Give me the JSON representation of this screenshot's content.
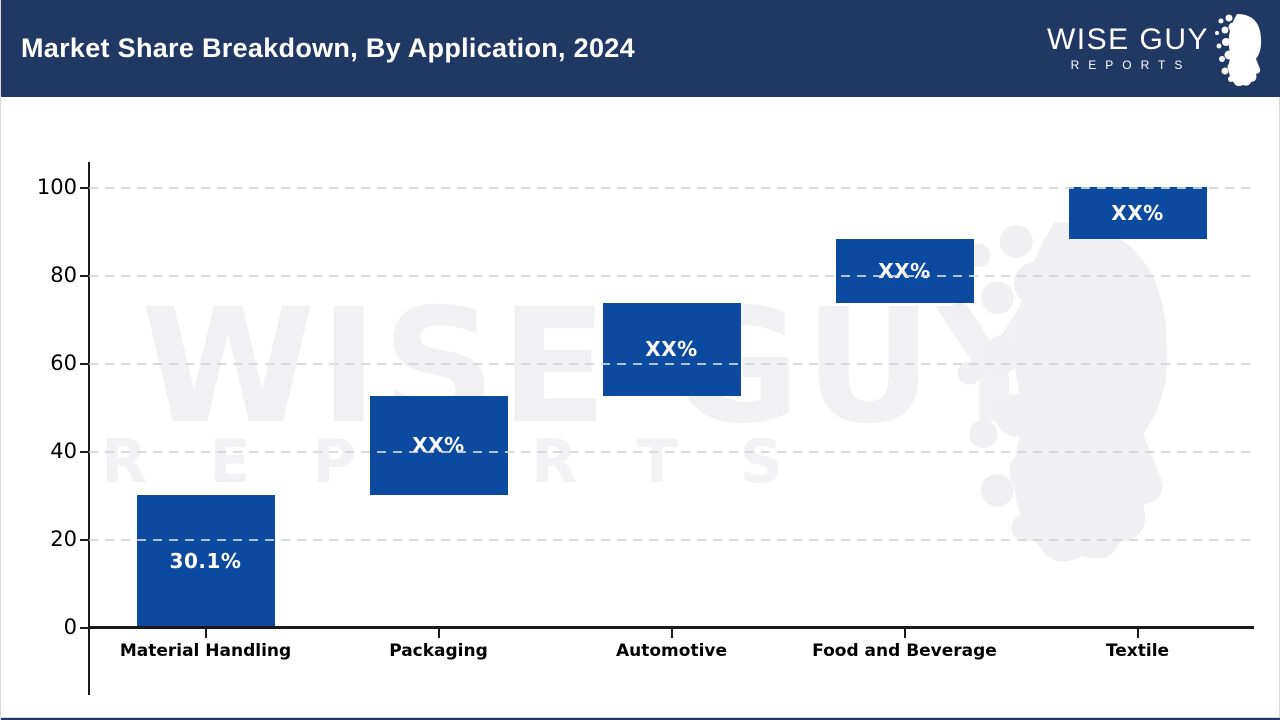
{
  "header": {
    "title": "Market Share Breakdown, By Application, 2024",
    "logo": {
      "line1": "WISE GUY",
      "line2": "REPORTS"
    },
    "bg_color": "#1f3864"
  },
  "watermark": {
    "line1": "WISE GUY",
    "line2": "REPORTS"
  },
  "chart_data": {
    "type": "bar",
    "subtype": "floating-waterfall",
    "title": "Market Share Breakdown, By Application, 2024",
    "categories": [
      "Material Handling",
      "Packaging",
      "Automotive",
      "Food and Beverage",
      "Textile"
    ],
    "bar_start": [
      0,
      30.1,
      52.6,
      73.7,
      88.2
    ],
    "bar_end": [
      30.1,
      52.6,
      73.7,
      88.2,
      100
    ],
    "bar_labels": [
      "30.1%",
      "XX%",
      "XX%",
      "XX%",
      "XX%"
    ],
    "yticks": [
      "0",
      "20",
      "40",
      "60",
      "80",
      "100"
    ],
    "ytick_values": [
      0,
      20,
      40,
      60,
      80,
      100
    ],
    "ylim": [
      0,
      100
    ],
    "xlabel": "",
    "ylabel": "",
    "grid": "horizontal-dashed",
    "legend": "none",
    "bar_color": "#0b4a9e",
    "bar_label_color": "#ffffff",
    "axis_color": "#1a1a1a",
    "grid_color": "#d4d6da"
  }
}
